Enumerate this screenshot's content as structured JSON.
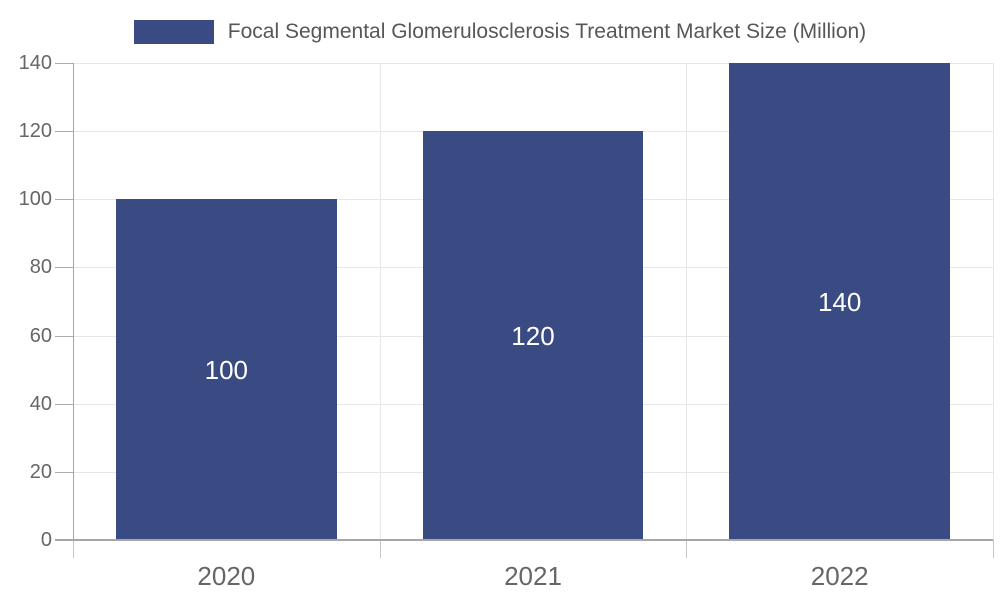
{
  "chart_data": {
    "type": "bar",
    "title": "",
    "legend_label": "Focal Segmental Glomerulosclerosis Treatment Market Size (Million)",
    "legend_position": "top",
    "categories": [
      "2020",
      "2021",
      "2022"
    ],
    "values": [
      100,
      120,
      140
    ],
    "bar_value_labels": [
      "100",
      "120",
      "140"
    ],
    "xlabel": "",
    "ylabel": "",
    "ylim": [
      0,
      140
    ],
    "yticks": [
      0,
      20,
      40,
      60,
      80,
      100,
      120,
      140
    ],
    "grid": true,
    "colors": {
      "bar": "#3A4A82",
      "bar_label_text": "#FFFFFF",
      "legend_text": "#56575B",
      "tick_text": "#666666",
      "grid": "#E7E7E7",
      "axis": "#A6A6A6",
      "y_tick_mark": "#ACACAC",
      "x_tick_mark": "#C6C6CC"
    }
  }
}
